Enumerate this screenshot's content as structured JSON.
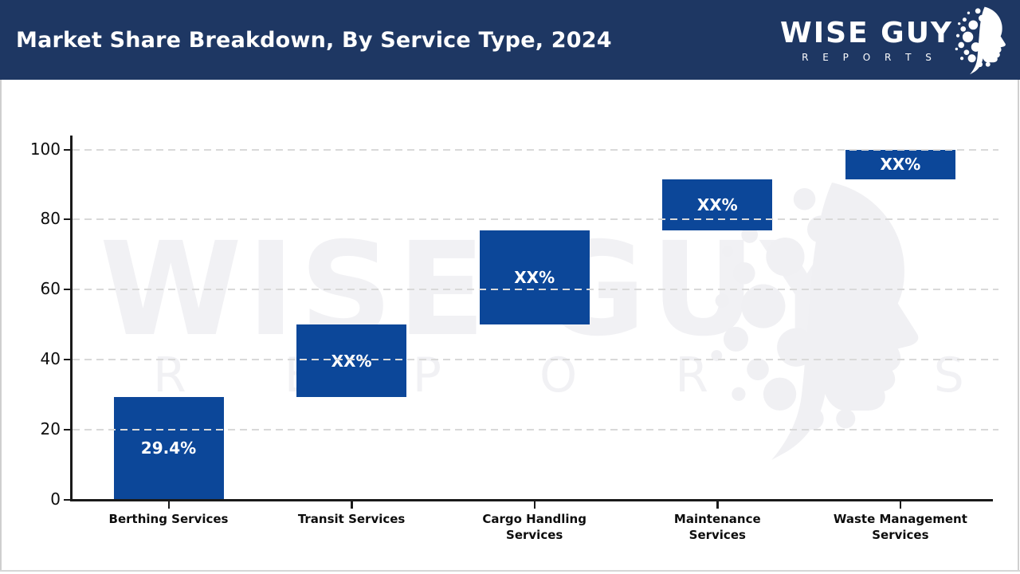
{
  "header": {
    "title": "Market Share Breakdown, By Service Type, 2024",
    "bg_color": "#1E3763",
    "logo": {
      "line1": "WISE GUY",
      "line2": "R E P O R T S"
    }
  },
  "watermark": {
    "line1": "WISE GUY",
    "line2": "R E P O R T S"
  },
  "chart_data": {
    "type": "bar",
    "subtype": "waterfall-floating-bars",
    "title": "Market Share Breakdown, By Service Type, 2024",
    "xlabel": "",
    "ylabel": "",
    "ylim": [
      0,
      105
    ],
    "yticks": [
      0,
      20,
      40,
      60,
      80,
      100
    ],
    "grid": "horizontal-dashed",
    "legend": "none",
    "bar_color": "#0C4799",
    "bar_label_color": "#ffffff",
    "categories": [
      "Berthing Services",
      "Transit Services",
      "Cargo Handling\nServices",
      "Maintenance\nServices",
      "Waste Management\nServices"
    ],
    "segments": [
      {
        "category": "Berthing Services",
        "start": 0,
        "end": 29.4,
        "label": "29.4%"
      },
      {
        "category": "Transit Services",
        "start": 29.4,
        "end": 50.0,
        "label": "XX%"
      },
      {
        "category": "Cargo Handling Services",
        "start": 50.0,
        "end": 77.0,
        "label": "XX%"
      },
      {
        "category": "Maintenance Services",
        "start": 77.0,
        "end": 91.5,
        "label": "XX%"
      },
      {
        "category": "Waste Management Services",
        "start": 91.5,
        "end": 100.0,
        "label": "XX%"
      }
    ]
  }
}
